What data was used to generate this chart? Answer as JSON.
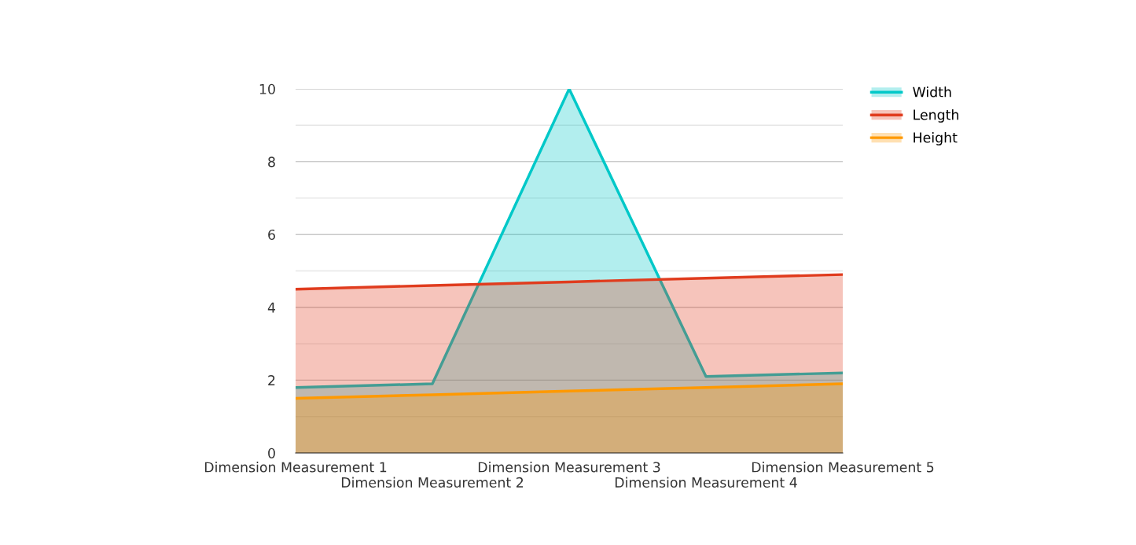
{
  "chart_data": {
    "type": "area",
    "categories": [
      "Dimension Measurement 1",
      "Dimension Measurement 2",
      "Dimension Measurement 3",
      "Dimension Measurement 4",
      "Dimension Measurement 5"
    ],
    "series": [
      {
        "name": "Width",
        "color": "#00c8c8",
        "values": [
          1.8,
          1.9,
          10,
          2.1,
          2.2
        ]
      },
      {
        "name": "Length",
        "color": "#e03c1e",
        "values": [
          4.5,
          4.6,
          4.7,
          4.8,
          4.9
        ]
      },
      {
        "name": "Height",
        "color": "#ff9900",
        "values": [
          1.5,
          1.6,
          1.7,
          1.8,
          1.9
        ]
      }
    ],
    "ylim": [
      0,
      10
    ],
    "yticks": [
      0,
      {
        "value": 1,
        "label": null
      },
      2,
      {
        "value": 3,
        "label": null
      },
      4,
      {
        "value": 5,
        "label": null
      },
      6,
      {
        "value": 7,
        "label": null
      },
      8,
      {
        "value": 9,
        "label": null
      },
      10
    ],
    "grid": "y",
    "legend": "top right"
  }
}
